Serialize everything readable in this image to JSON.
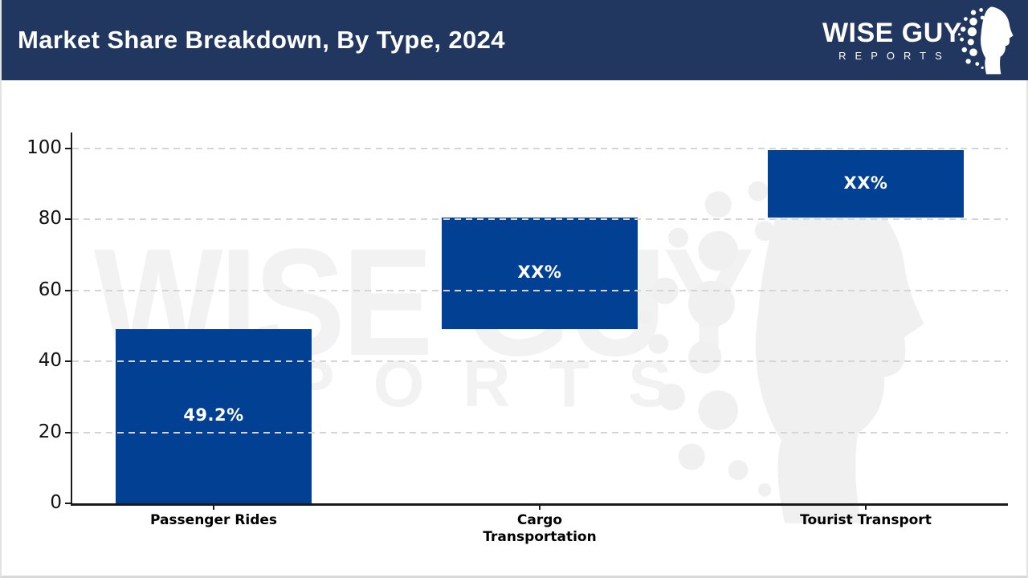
{
  "header": {
    "title": "Market Share Breakdown, By Type, 2024",
    "logo": {
      "name_line": "WISE GUY",
      "sub_line": "REPORTS",
      "face_icon": "dotted-head-profile"
    }
  },
  "watermark": {
    "line1": "WISE GUY",
    "line2": "REPORTS",
    "graphic": "dotted-head-profile"
  },
  "chart_data": {
    "type": "bar",
    "variant": "stacked-waterfall-floating-bars",
    "title": "Market Share Breakdown, By Type, 2024",
    "categories": [
      "Passenger Rides",
      "Cargo\nTransportation",
      "Tourist Transport"
    ],
    "bars": [
      {
        "category": "Passenger Rides",
        "start": 0,
        "end": 49.2,
        "label": "49.2%"
      },
      {
        "category": "Cargo Transportation",
        "start": 49.2,
        "end": 80.5,
        "label": "XX%"
      },
      {
        "category": "Tourist Transport",
        "start": 80.5,
        "end": 99.5,
        "label": "XX%"
      }
    ],
    "xlabel": "",
    "ylabel": "",
    "ylim": [
      0,
      100
    ],
    "yticks": [
      0,
      20,
      40,
      60,
      80,
      100
    ],
    "grid": "horizontal-dashed",
    "legend": "none",
    "colors": {
      "bar": "#024094",
      "bar_label": "#ffffff",
      "grid": "#d5d5d5",
      "axis": "#1a1a1a",
      "header_bg": "#21375f",
      "watermark": "#f2f2f2"
    }
  }
}
